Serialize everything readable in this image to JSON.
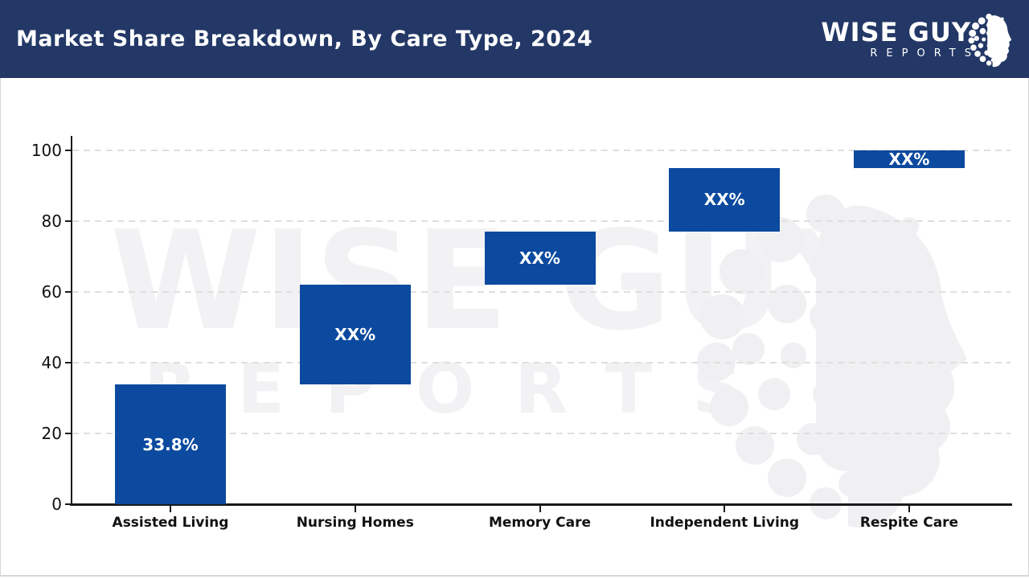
{
  "header": {
    "title": "Market Share Breakdown, By Care Type, 2024",
    "logo": {
      "line1": "WISE GUY",
      "line2": "REPORTS"
    }
  },
  "watermark": {
    "line1": "WISE GUY",
    "line2": "REPORTS"
  },
  "colors": {
    "header_bg": "#233866",
    "bar": "#0b4a9e",
    "bar_label": "#ffffff",
    "grid": "#dfdfdf",
    "axis": "#1a1a1a",
    "tick_text": "#111111",
    "watermark": "#f2f2f4"
  },
  "chart_data": {
    "type": "bar",
    "subtype": "floating-waterfall-columns",
    "title": "Market Share Breakdown, By Care Type, 2024",
    "xlabel": "",
    "ylabel": "",
    "categories": [
      "Assisted Living",
      "Nursing Homes",
      "Memory Care",
      "Independent Living",
      "Respite Care"
    ],
    "segments": [
      {
        "category": "Assisted Living",
        "start": 0,
        "end": 33.8,
        "label": "33.8%"
      },
      {
        "category": "Nursing Homes",
        "start": 33.8,
        "end": 62,
        "label": "XX%"
      },
      {
        "category": "Memory Care",
        "start": 62,
        "end": 77,
        "label": "XX%"
      },
      {
        "category": "Independent Living",
        "start": 77,
        "end": 95,
        "label": "XX%"
      },
      {
        "category": "Respite Care",
        "start": 95,
        "end": 100,
        "label": "XX%"
      }
    ],
    "yticks": [
      0,
      20,
      40,
      60,
      80,
      100
    ],
    "ylim": [
      0,
      105
    ],
    "grid": "dashed-horizontal",
    "legend": "none"
  }
}
